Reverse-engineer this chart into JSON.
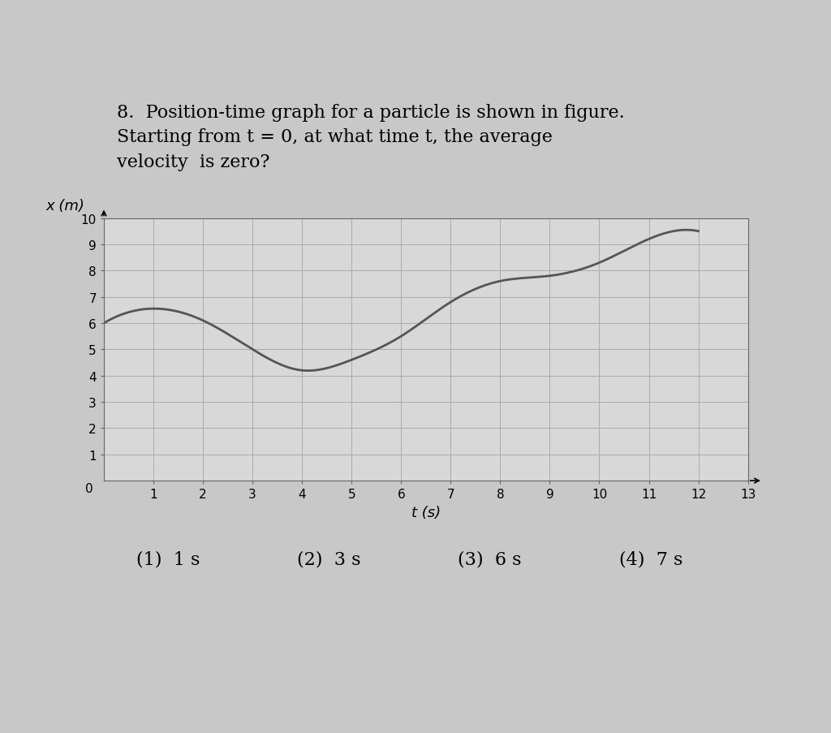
{
  "title_question": "8.  Position-time graph for a particle is shown in figure.\nStarting from t = 0, at what time t, the average\nvelocity  is zero?",
  "xlabel": "t (s)",
  "ylabel": "x (m)",
  "xlim": [
    0,
    13
  ],
  "ylim": [
    0,
    10
  ],
  "xticks": [
    1,
    2,
    3,
    4,
    5,
    6,
    7,
    8,
    9,
    10,
    11,
    12,
    13
  ],
  "yticks": [
    1,
    2,
    3,
    4,
    5,
    6,
    7,
    8,
    9,
    10
  ],
  "curve_t": [
    0,
    1,
    2,
    3,
    4,
    5,
    6,
    7,
    8,
    9,
    10,
    11,
    12
  ],
  "curve_x": [
    6.0,
    6.55,
    6.1,
    5.0,
    4.2,
    4.6,
    5.5,
    6.8,
    7.6,
    7.8,
    8.3,
    9.2,
    9.5
  ],
  "curve_color": "#555555",
  "curve_linewidth": 2.0,
  "grid_color": "#aaaaaa",
  "bg_color": "#d8d8d8",
  "options": [
    "(1)  1 s",
    "(2)  3 s",
    "(3)  6 s",
    "(4)  7 s"
  ],
  "question_fontsize": 16,
  "option_fontsize": 16,
  "axis_label_fontsize": 13,
  "tick_fontsize": 11
}
